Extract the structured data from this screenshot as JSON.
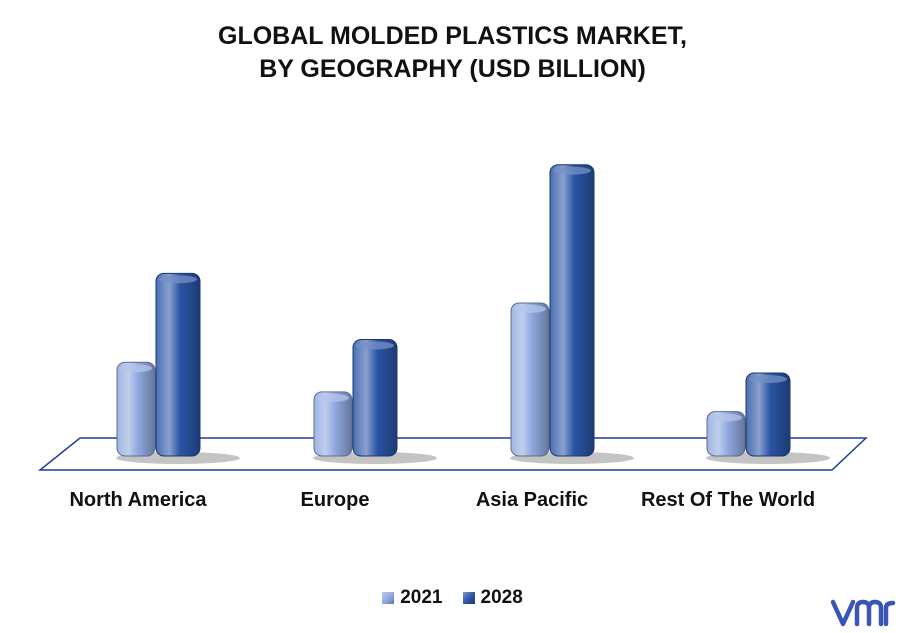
{
  "chart_data": {
    "type": "bar",
    "title_lines": [
      "GLOBAL MOLDED PLASTICS MARKET,",
      "BY GEOGRAPHY (USD BILLION)"
    ],
    "categories": [
      "North America",
      "Europe",
      "Asia Pacific",
      "Rest Of The World"
    ],
    "series": [
      {
        "name": "2021",
        "values": [
          95,
          65,
          155,
          45
        ],
        "color": "#8fa8de"
      },
      {
        "name": "2028",
        "values": [
          185,
          118,
          295,
          84
        ],
        "color": "#2a54a5"
      }
    ],
    "ylim": [
      0,
      320
    ],
    "grid": false,
    "legend_position": "bottom",
    "style": "3d-rounded-bars"
  },
  "colors": {
    "axis_floor": "#1f3d99",
    "logo": "#3b55b5"
  },
  "logo": {
    "icon": "vmr-logo-icon"
  }
}
